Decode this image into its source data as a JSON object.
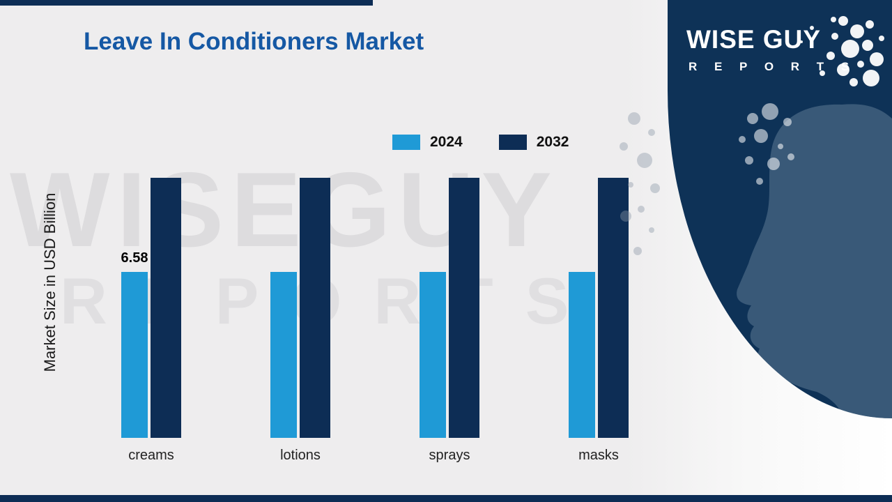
{
  "header": {
    "title": "Leave In Conditioners Market"
  },
  "logo": {
    "line1": "WISE GUY",
    "line2": "R E P O R T S"
  },
  "watermark": {
    "line1": "WISEGUY",
    "line2": "REPORTS"
  },
  "chart_data": {
    "type": "bar",
    "title": "Leave In Conditioners Market",
    "ylabel": "Market Size in USD Billion",
    "categories": [
      "creams",
      "lotions",
      "sprays",
      "masks"
    ],
    "series": [
      {
        "name": "2024",
        "color": "#1f9ad6",
        "values": [
          6.58,
          6.58,
          6.58,
          6.58
        ]
      },
      {
        "name": "2032",
        "color": "#0d2d55",
        "values": [
          10.31,
          10.31,
          10.31,
          10.31
        ]
      }
    ],
    "value_labels": [
      {
        "category": "creams",
        "series": "2024",
        "text": "6.58"
      }
    ],
    "legend_position": "top-center",
    "grid": false,
    "ylim": [
      0,
      11
    ]
  },
  "colors": {
    "title_blue": "#1558a4",
    "bar_2024": "#1f9ad6",
    "bar_2032": "#0d2d55",
    "logo_navy": "#0e3257",
    "strip_navy": "#0d2d55",
    "background": "#eeedee"
  }
}
